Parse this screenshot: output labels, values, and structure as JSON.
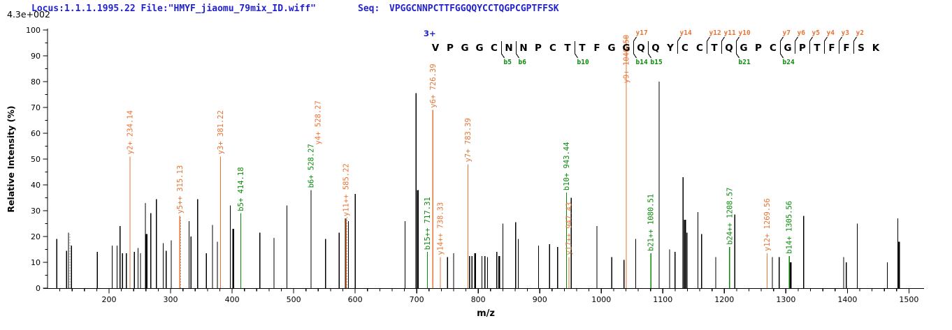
{
  "header": {
    "max_intensity": "4.3e+002",
    "locus_file": "Locus:1.1.1.1995.22 File:\"HMYF_jiaomu_79mix_ID.wiff\"",
    "seq_label": "Seq:",
    "sequence": "VPGGCNNPCTTFGGQQYCCTQGPCGPTFFSK",
    "precursor_charge": "3+"
  },
  "colors": {
    "y_ion": "#e87332",
    "b_ion": "#0a8a0a",
    "peak_black": "#000000",
    "header_blue": "#2222cc",
    "isotope_gray": "#aaaaaa",
    "axis": "#000000"
  },
  "chart_data": {
    "type": "bar",
    "subtype": "ms2-mass-spectrum",
    "xlabel": "m/z",
    "ylabel": "Relative  Intensity  (%)",
    "x_range": [
      100,
      1520
    ],
    "x_major_tick_start": 200,
    "x_major_tick_end": 1500,
    "x_major_tick_step": 100,
    "x_minor_tick_step": 20,
    "y_range": [
      0,
      100
    ],
    "y_major_tick_step": 10,
    "y_minor_tick_step": 5,
    "grid": false,
    "peptide": {
      "sequence": "VPGGCNNPCTTFGGQQYCCTQGPCGPTFFSK",
      "charge": "3+",
      "b_ions_marked": [
        5,
        6,
        10,
        14,
        15,
        21,
        24
      ],
      "y_ions_marked": [
        17,
        14,
        12,
        11,
        10,
        7,
        6,
        5,
        4,
        3,
        2
      ]
    },
    "labeled_peaks": [
      {
        "label": "y2+ 234.14",
        "mz": 234.14,
        "h": 51,
        "ion": "y"
      },
      {
        "label": "y5++ 315.13",
        "mz": 315.13,
        "h": 28,
        "ion": "y"
      },
      {
        "label": "y3+ 381.22",
        "mz": 381.22,
        "h": 51,
        "ion": "y"
      },
      {
        "label": "b5+ 414.18",
        "mz": 414.18,
        "h": 29,
        "ion": "b"
      },
      {
        "label": "b6+ 528.27",
        "mz": 528.27,
        "h": 38,
        "ion": "b",
        "line_color": "#000000"
      },
      {
        "label": "y4+ 528.27",
        "mz": 528.27,
        "h": 38,
        "ion": "y",
        "no_line": true,
        "dx": 10,
        "dy": -62
      },
      {
        "label": "y11++ 585.22",
        "mz": 585.22,
        "h": 27,
        "ion": "y"
      },
      {
        "label": "b15++ 717.31",
        "mz": 717.31,
        "h": 14,
        "ion": "b"
      },
      {
        "label": "y6+ 726.39",
        "mz": 726.39,
        "h": 69,
        "ion": "y"
      },
      {
        "label": "y14++ 738.33",
        "mz": 738.33,
        "h": 12,
        "ion": "y"
      },
      {
        "label": "y7+ 783.39",
        "mz": 783.39,
        "h": 48,
        "ion": "y"
      },
      {
        "label": "b10+ 943.44",
        "mz": 943.44,
        "h": 37,
        "ion": "b"
      },
      {
        "label": "y17++ 947.43",
        "mz": 947.43,
        "h": 12,
        "ion": "y"
      },
      {
        "label": "y9+ 1040.50",
        "mz": 1040.5,
        "h": 98,
        "ion": "y",
        "dy": 72
      },
      {
        "label": "b21++ 1080.51",
        "mz": 1080.51,
        "h": 13.5,
        "ion": "b"
      },
      {
        "label": "b24++ 1208.57",
        "mz": 1208.57,
        "h": 16,
        "ion": "b"
      },
      {
        "label": "y12+ 1269.56",
        "mz": 1269.56,
        "h": 13.5,
        "ion": "y"
      },
      {
        "label": "b14+ 1305.56",
        "mz": 1305.56,
        "h": 12.5,
        "ion": "b"
      }
    ],
    "unlabeled_peaks": [
      [
        115,
        19
      ],
      [
        131,
        14.5
      ],
      [
        134,
        21.5
      ],
      [
        139,
        16.5
      ],
      [
        181,
        14
      ],
      [
        205,
        16.5
      ],
      [
        213,
        16.5
      ],
      [
        218,
        24
      ],
      [
        222,
        13.5
      ],
      [
        228,
        13.5
      ],
      [
        241,
        14
      ],
      [
        247,
        15.5
      ],
      [
        251,
        13.5
      ],
      [
        259,
        33
      ],
      [
        261,
        21,
        2
      ],
      [
        268,
        29
      ],
      [
        277,
        34.5
      ],
      [
        288,
        17.5
      ],
      [
        293,
        14.5
      ],
      [
        301,
        18.5
      ],
      [
        330,
        26
      ],
      [
        333,
        20
      ],
      [
        344,
        34.5
      ],
      [
        358,
        13.5
      ],
      [
        368,
        24.5
      ],
      [
        376,
        18
      ],
      [
        397,
        32
      ],
      [
        402,
        23,
        2
      ],
      [
        445,
        21.5
      ],
      [
        468,
        19.5
      ],
      [
        489,
        32
      ],
      [
        552,
        19
      ],
      [
        574,
        21.5
      ],
      [
        584,
        27
      ],
      [
        589,
        26
      ],
      [
        600,
        36.5
      ],
      [
        681,
        26
      ],
      [
        699,
        75.5
      ],
      [
        702,
        38,
        2
      ],
      [
        750,
        12
      ],
      [
        760,
        13.5
      ],
      [
        786,
        12.5
      ],
      [
        790,
        12.5
      ],
      [
        795,
        13.5,
        2
      ],
      [
        806,
        12.5
      ],
      [
        811,
        12.5
      ],
      [
        815,
        12
      ],
      [
        830,
        14
      ],
      [
        834,
        12.5,
        2
      ],
      [
        840,
        25
      ],
      [
        861,
        25.5
      ],
      [
        865,
        19
      ],
      [
        898,
        16.5
      ],
      [
        916,
        17
      ],
      [
        929,
        16
      ],
      [
        951,
        35
      ],
      [
        993,
        24
      ],
      [
        1017,
        12
      ],
      [
        1037,
        11
      ],
      [
        1056,
        19
      ],
      [
        1094,
        80
      ],
      [
        1111,
        15
      ],
      [
        1120,
        14
      ],
      [
        1133,
        43
      ],
      [
        1136,
        26.5,
        2
      ],
      [
        1139,
        21.5
      ],
      [
        1157,
        29.5
      ],
      [
        1163,
        21
      ],
      [
        1186,
        12
      ],
      [
        1217,
        28.5
      ],
      [
        1278,
        12
      ],
      [
        1289,
        12
      ],
      [
        1308,
        10,
        2
      ],
      [
        1329,
        28
      ],
      [
        1394,
        12
      ],
      [
        1398,
        10
      ],
      [
        1416,
        25
      ],
      [
        1465,
        10
      ],
      [
        1482,
        27
      ],
      [
        1484,
        18,
        2
      ]
    ],
    "isotope_marks": [
      [
        136.5,
        21
      ],
      [
        316.5,
        27.5
      ],
      [
        586.5,
        28
      ]
    ]
  }
}
